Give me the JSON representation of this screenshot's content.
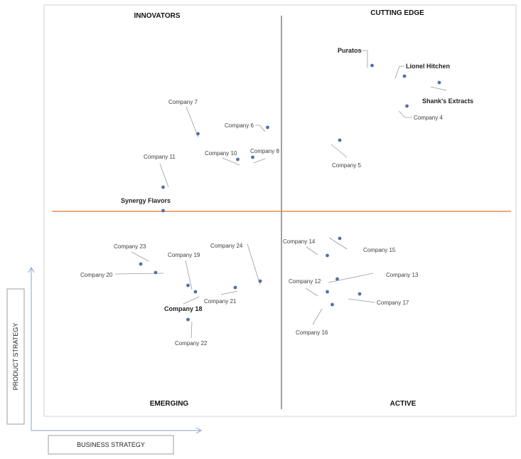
{
  "chart_data": {
    "type": "scatter",
    "title": "",
    "xlabel": "BUSINESS STRATEGY",
    "ylabel": "PRODUCT STRATEGY",
    "xlim": [
      0,
      100
    ],
    "ylim": [
      0,
      100
    ],
    "grid": false,
    "quadrants": {
      "top_left": "INNOVATORS",
      "top_right": "CUTTING EDGE",
      "bottom_left": "EMERGING",
      "bottom_right": "ACTIVE"
    },
    "point_color": "#4f6fae",
    "horizontal_divider_color": "#e0772a",
    "vertical_divider_color": "#404040",
    "points": [
      {
        "name": "Puratos",
        "x": 68.5,
        "y": 85.5,
        "bold": true
      },
      {
        "name": "Lionel Hitchen",
        "x": 75,
        "y": 83,
        "bold": true
      },
      {
        "name": "Shank's Extracts",
        "x": 82,
        "y": 81.5,
        "bold": true
      },
      {
        "name": "Company 4",
        "x": 75.5,
        "y": 76,
        "bold": false
      },
      {
        "name": "Company 5",
        "x": 62,
        "y": 68,
        "bold": false
      },
      {
        "name": "Company 6",
        "x": 47.5,
        "y": 71,
        "bold": false
      },
      {
        "name": "Company 7",
        "x": 33.5,
        "y": 69.5,
        "bold": false
      },
      {
        "name": "Company 8",
        "x": 44.5,
        "y": 64,
        "bold": false
      },
      {
        "name": "Company 10",
        "x": 41.5,
        "y": 63.5,
        "bold": false
      },
      {
        "name": "Company 11",
        "x": 26.5,
        "y": 57,
        "bold": false
      },
      {
        "name": "Synergy Flavors",
        "x": 26.5,
        "y": 51.5,
        "bold": true
      },
      {
        "name": "Company 14",
        "x": 59.5,
        "y": 41,
        "bold": false
      },
      {
        "name": "Company 15",
        "x": 62,
        "y": 45,
        "bold": false
      },
      {
        "name": "Company 13",
        "x": 61.5,
        "y": 35.5,
        "bold": false
      },
      {
        "name": "Company 12",
        "x": 59.5,
        "y": 32.5,
        "bold": false
      },
      {
        "name": "Company 17",
        "x": 66,
        "y": 32,
        "bold": false
      },
      {
        "name": "Company 16",
        "x": 60.5,
        "y": 29.5,
        "bold": false
      },
      {
        "name": "Company 23",
        "x": 22,
        "y": 39,
        "bold": false
      },
      {
        "name": "Company 20",
        "x": 25,
        "y": 37,
        "bold": false
      },
      {
        "name": "Company 19",
        "x": 31.5,
        "y": 34,
        "bold": false
      },
      {
        "name": "Company 18",
        "x": 33,
        "y": 32.5,
        "bold": true
      },
      {
        "name": "Company 21",
        "x": 41,
        "y": 33.5,
        "bold": false
      },
      {
        "name": "Company 24",
        "x": 46,
        "y": 35,
        "bold": false
      },
      {
        "name": "Company 22",
        "x": 31.5,
        "y": 26,
        "bold": false
      }
    ]
  }
}
